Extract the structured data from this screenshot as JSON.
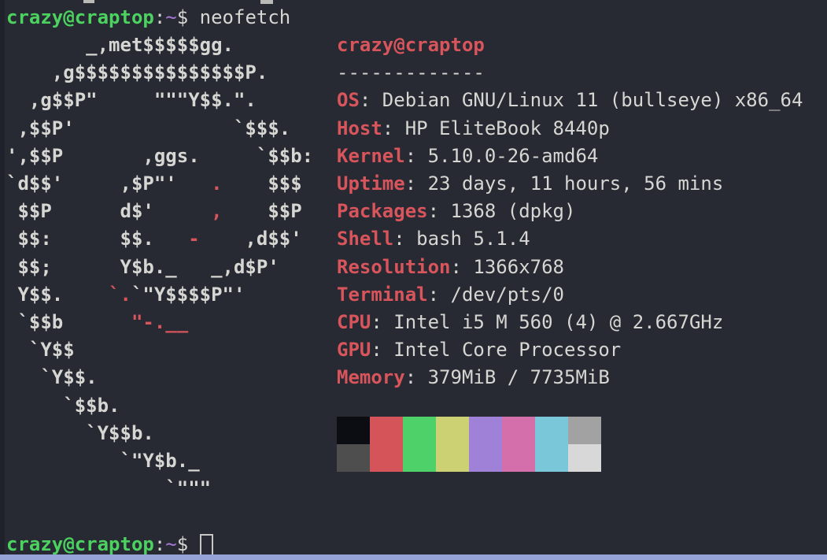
{
  "terminal": {
    "prompt": {
      "user": "crazy@craptop",
      "colon": ":",
      "path": "~",
      "dollar": "$",
      "command": " neofetch"
    },
    "colors": {
      "background": "#272933",
      "foreground": "#d6d6d2",
      "prompt_user_green": "#4cd25f",
      "prompt_path_purple": "#a478d6",
      "accent_red": "#d8555c",
      "window_bottom_border": "#96a3d6"
    },
    "ascii_art": {
      "name": "debian-logo-ascii",
      "lines": [
        [
          {
            "t": "       _,met$$$$$gg.",
            "c": "fg"
          }
        ],
        [
          {
            "t": "    ,g$$$$$$$$$$$$$$$P.",
            "c": "fg"
          }
        ],
        [
          {
            "t": "  ,g$$P\"     \"\"\"Y$$.\".",
            "c": "fg"
          }
        ],
        [
          {
            "t": " ,$$P'              `$$$.",
            "c": "fg"
          }
        ],
        [
          {
            "t": "',$$P       ,ggs.     `$$b:",
            "c": "fg"
          }
        ],
        [
          {
            "t": "`d$$'     ,$P\"'   ",
            "c": "fg"
          },
          {
            "t": ".",
            "c": "accent"
          },
          {
            "t": "    $$$",
            "c": "fg"
          }
        ],
        [
          {
            "t": " $$P      d$'     ",
            "c": "fg"
          },
          {
            "t": ",",
            "c": "accent"
          },
          {
            "t": "    $$P",
            "c": "fg"
          }
        ],
        [
          {
            "t": " $$:      $$.   ",
            "c": "fg"
          },
          {
            "t": "-",
            "c": "accent"
          },
          {
            "t": "    ,d$$'",
            "c": "fg"
          }
        ],
        [
          {
            "t": " $$;      Y$b._   _,d$P'",
            "c": "fg"
          }
        ],
        [
          {
            "t": " Y$$.    ",
            "c": "fg"
          },
          {
            "t": "`.",
            "c": "accent"
          },
          {
            "t": "`\"Y$$$$P\"'",
            "c": "fg"
          }
        ],
        [
          {
            "t": " `$$b      ",
            "c": "fg"
          },
          {
            "t": "\"-.__",
            "c": "accent"
          }
        ],
        [
          {
            "t": "  `Y$$",
            "c": "fg"
          }
        ],
        [
          {
            "t": "   `Y$$.",
            "c": "fg"
          }
        ],
        [
          {
            "t": "     `$$b.",
            "c": "fg"
          }
        ],
        [
          {
            "t": "       `Y$$b.",
            "c": "fg"
          }
        ],
        [
          {
            "t": "          `\"Y$b._",
            "c": "fg"
          }
        ],
        [
          {
            "t": "              `\"\"\"",
            "c": "fg"
          }
        ]
      ]
    },
    "info": {
      "title": "crazy@craptop",
      "separator": "-------------",
      "rows": [
        {
          "label": "OS",
          "value": "Debian GNU/Linux 11 (bullseye) x86_64"
        },
        {
          "label": "Host",
          "value": "HP EliteBook 8440p"
        },
        {
          "label": "Kernel",
          "value": "5.10.0-26-amd64"
        },
        {
          "label": "Uptime",
          "value": "23 days, 11 hours, 56 mins"
        },
        {
          "label": "Packages",
          "value": "1368 (dpkg)"
        },
        {
          "label": "Shell",
          "value": "bash 5.1.4"
        },
        {
          "label": "Resolution",
          "value": "1366x768"
        },
        {
          "label": "Terminal",
          "value": "/dev/pts/0"
        },
        {
          "label": "CPU",
          "value": "Intel i5 M 560 (4) @ 2.667GHz"
        },
        {
          "label": "GPU",
          "value": "Intel Core Processor"
        },
        {
          "label": "Memory",
          "value": "379MiB / 7735MiB"
        }
      ]
    },
    "palette": {
      "row1": [
        "#0b0d13",
        "#d45459",
        "#4dd168",
        "#ccd274",
        "#9f81d7",
        "#d56fab",
        "#79c7d9",
        "#a2a2a2"
      ],
      "row2": [
        "#4e4e4e",
        "#d45459",
        "#4dd168",
        "#ccd274",
        "#9f81d7",
        "#d56fab",
        "#79c7d9",
        "#d8d8d8"
      ]
    }
  }
}
